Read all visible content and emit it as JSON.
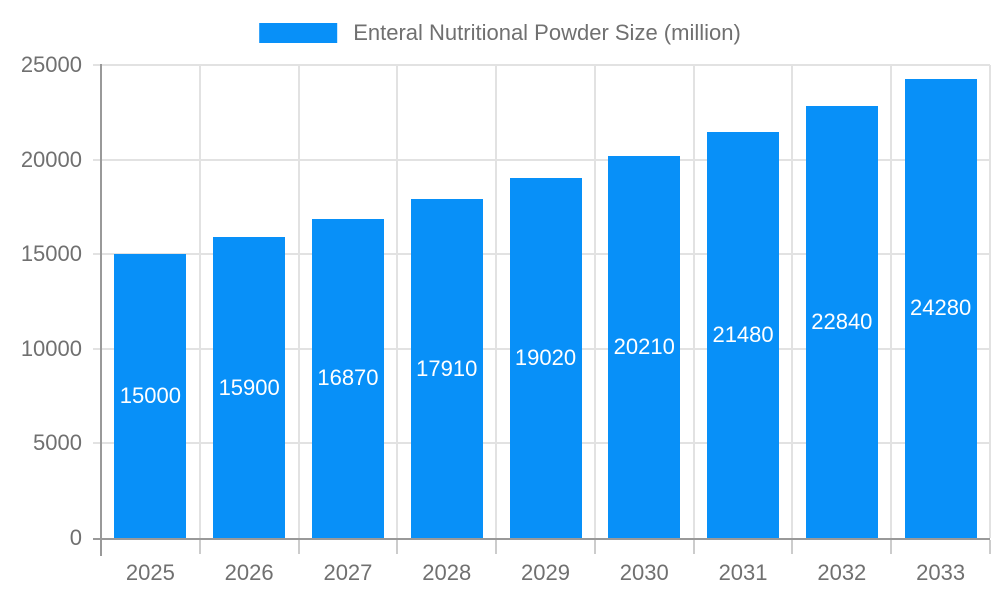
{
  "legend": {
    "label": "Enteral Nutritional Powder Size (million)"
  },
  "chart_data": {
    "type": "bar",
    "title": "Enteral Nutritional Powder Size (million)",
    "categories": [
      "2025",
      "2026",
      "2027",
      "2028",
      "2029",
      "2030",
      "2031",
      "2032",
      "2033"
    ],
    "values": [
      15000,
      15900,
      16870,
      17910,
      19020,
      20210,
      21480,
      22840,
      24280
    ],
    "xlabel": "",
    "ylabel": "",
    "ylim": [
      0,
      25000
    ],
    "yticks": [
      0,
      5000,
      10000,
      15000,
      20000,
      25000
    ],
    "grid": true,
    "legend_position": "top-center",
    "bar_label_position": "inside-middle",
    "colors": {
      "bar": "#0890F8",
      "bar_label": "#FFFFFF",
      "axis_text": "#707070",
      "grid_line": "#E2E2E2",
      "axis_line": "#999999",
      "tick": "#CCCCCC",
      "background": "#FFFFFF"
    }
  }
}
